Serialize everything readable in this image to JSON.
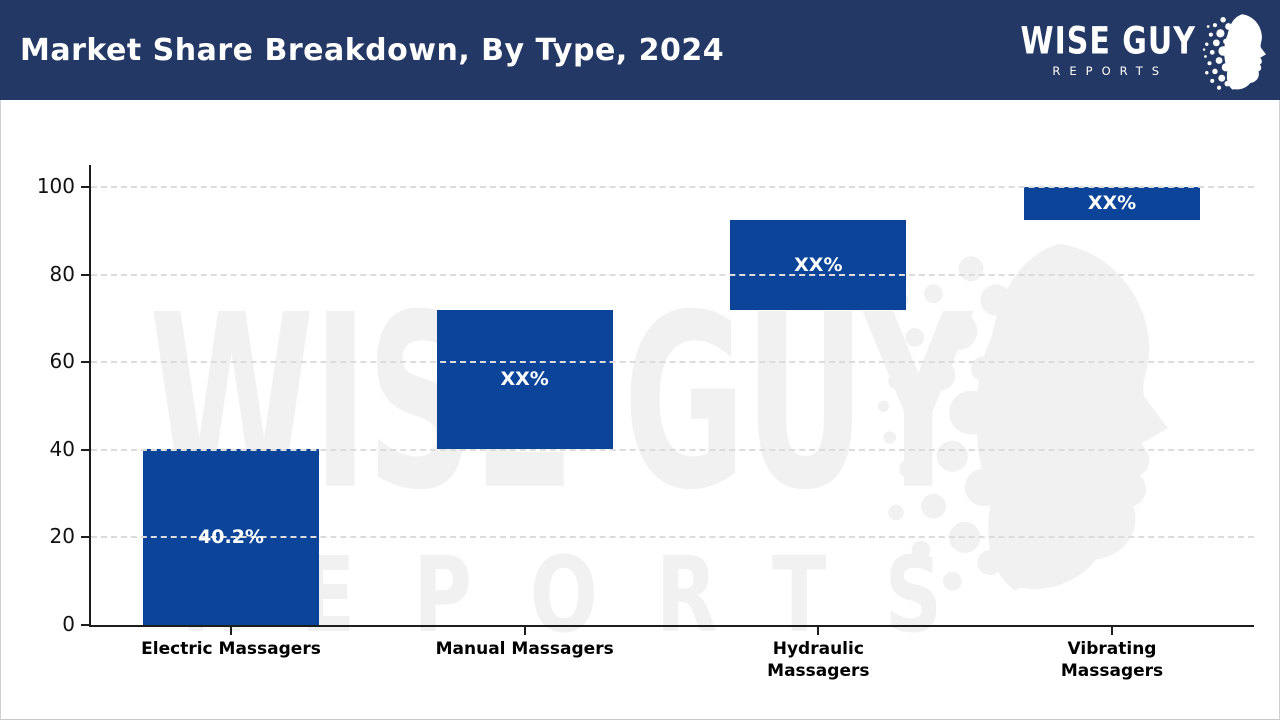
{
  "header": {
    "title": "Market Share Breakdown, By Type, 2024",
    "background_color": "#233864",
    "logo": {
      "line1": "WISE GUY",
      "line2": "REPORTS"
    }
  },
  "watermark": {
    "line1": "WISE GUY",
    "line2": "REPORTS"
  },
  "chart_data": {
    "type": "bar",
    "subtype": "stacked-waterfall",
    "title": "Market Share Breakdown, By Type, 2024",
    "xlabel": "",
    "ylabel": "",
    "ylim": [
      0,
      105
    ],
    "yticks": [
      0,
      20,
      40,
      60,
      80,
      100
    ],
    "grid": "horizontal-dashed",
    "legend": "none",
    "bar_color": "#0b4499",
    "value_label_color": "#ffffff",
    "axis_color": "#1d1d1d",
    "grid_color": "#dcdcdc",
    "categories": [
      "Electric Massagers",
      "Manual Massagers",
      "Hydraulic Massagers",
      "Vibrating Massagers"
    ],
    "category_label_lines": [
      [
        "Electric Massagers"
      ],
      [
        "Manual Massagers"
      ],
      [
        "Hydraulic",
        "Massagers"
      ],
      [
        "Vibrating",
        "Massagers"
      ]
    ],
    "segments": [
      {
        "category": "Electric Massagers",
        "start": 0,
        "end": 40.2,
        "label": "40.2%"
      },
      {
        "category": "Manual Massagers",
        "start": 40.2,
        "end": 72.0,
        "label": "XX%"
      },
      {
        "category": "Hydraulic Massagers",
        "start": 72.0,
        "end": 92.5,
        "label": "XX%"
      },
      {
        "category": "Vibrating Massagers",
        "start": 92.5,
        "end": 100.0,
        "label": "XX%"
      }
    ]
  }
}
